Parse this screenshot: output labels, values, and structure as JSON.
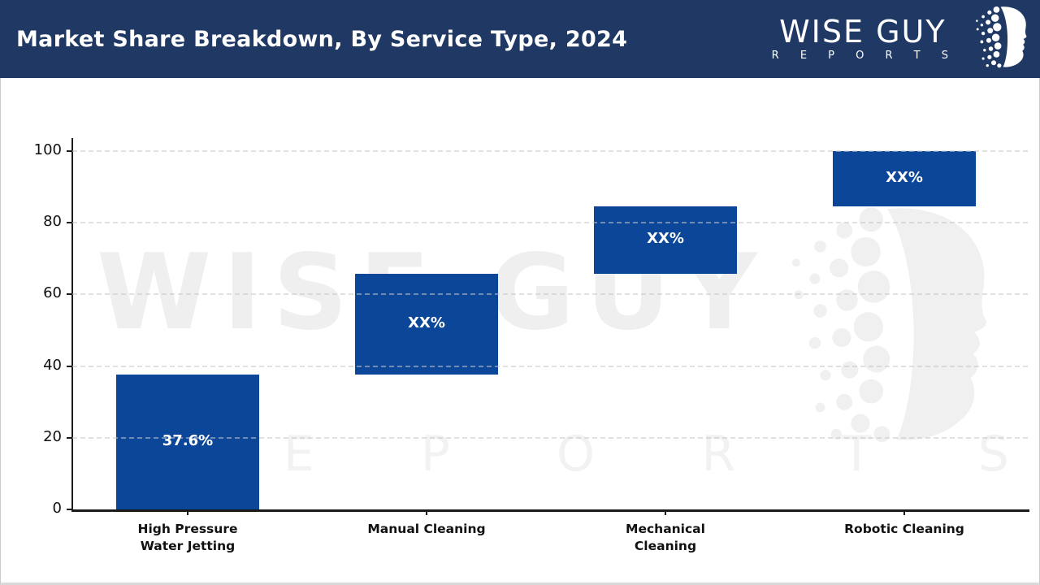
{
  "header": {
    "title": "Market Share Breakdown, By Service Type, 2024",
    "bg_color": "#1f3864",
    "logo": {
      "name": "WISE GUY",
      "sub": "R E P O R T S"
    }
  },
  "watermark": {
    "line1": "WISE GUY",
    "line2": "R E P O R T S"
  },
  "chart_data": {
    "type": "bar",
    "variant": "floating-waterfall",
    "title": "Market Share Breakdown, By Service Type, 2024",
    "categories": [
      "High Pressure\nWater Jetting",
      "Manual Cleaning",
      "Mechanical\nCleaning",
      "Robotic Cleaning"
    ],
    "series": [
      {
        "name": "Market share by service type (%)",
        "segments": [
          {
            "category": "High Pressure Water Jetting",
            "start": 0,
            "end": 37.6,
            "label": "37.6%"
          },
          {
            "category": "Manual Cleaning",
            "start": 37.6,
            "end": 65.8,
            "label": "XX%"
          },
          {
            "category": "Mechanical Cleaning",
            "start": 65.8,
            "end": 84.6,
            "label": "XX%"
          },
          {
            "category": "Robotic Cleaning",
            "start": 84.6,
            "end": 100,
            "label": "XX%"
          }
        ]
      }
    ],
    "xlabel": "",
    "ylabel": "",
    "ylim": [
      0,
      100
    ],
    "yticks": [
      0,
      20,
      40,
      60,
      80,
      100
    ],
    "grid": "horizontal dashed",
    "legend": "none",
    "bar_color": "#0b4699",
    "value_label_color": "#ffffff",
    "axis_color": "#1a1a1a"
  }
}
